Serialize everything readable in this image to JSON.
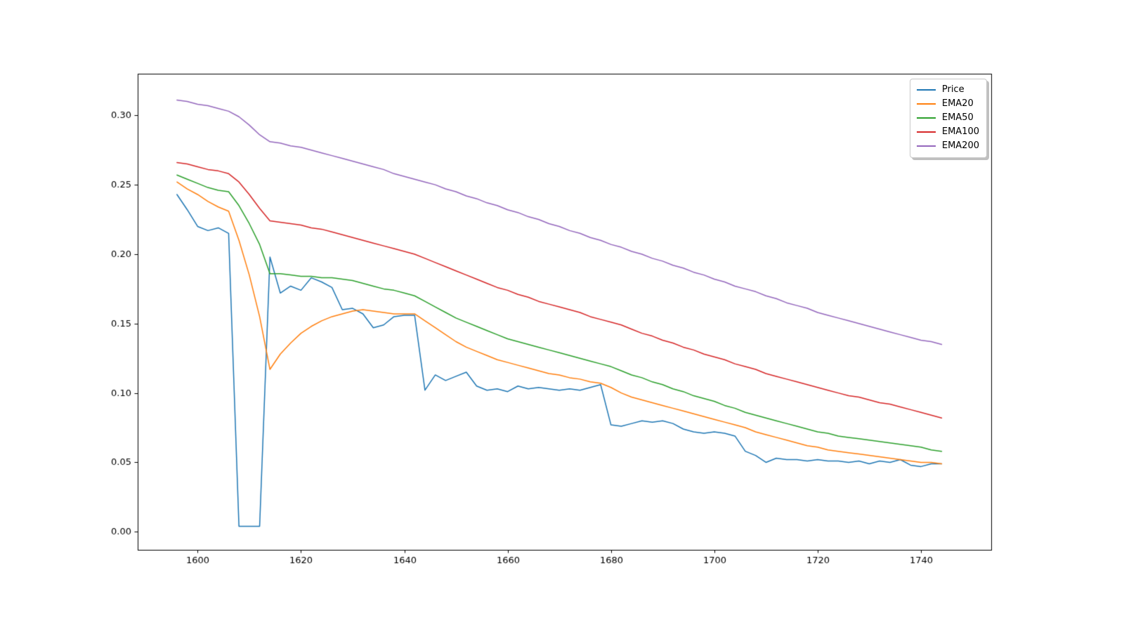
{
  "figure": {
    "background": "#ffffff"
  },
  "chart_data": {
    "type": "line",
    "title": "",
    "xlabel": "",
    "ylabel": "",
    "grid": false,
    "legend_position": "upper right",
    "xlim": [
      1588.4,
      1753.6
    ],
    "ylim": [
      -0.013,
      0.33
    ],
    "xticks": [
      1600,
      1620,
      1640,
      1660,
      1680,
      1700,
      1720,
      1740
    ],
    "xtick_labels": [
      "1600",
      "1620",
      "1640",
      "1660",
      "1680",
      "1700",
      "1720",
      "1740"
    ],
    "yticks": [
      0.0,
      0.05,
      0.1,
      0.15,
      0.2,
      0.25,
      0.3
    ],
    "ytick_labels": [
      "0.00",
      "0.05",
      "0.10",
      "0.15",
      "0.20",
      "0.25",
      "0.30"
    ],
    "x": [
      1596,
      1598,
      1600,
      1602,
      1604,
      1606,
      1608,
      1610,
      1612,
      1614,
      1616,
      1618,
      1620,
      1622,
      1624,
      1626,
      1628,
      1630,
      1632,
      1634,
      1636,
      1638,
      1640,
      1642,
      1644,
      1646,
      1648,
      1650,
      1652,
      1654,
      1656,
      1658,
      1660,
      1662,
      1664,
      1666,
      1668,
      1670,
      1672,
      1674,
      1676,
      1678,
      1680,
      1682,
      1684,
      1686,
      1688,
      1690,
      1692,
      1694,
      1696,
      1698,
      1700,
      1702,
      1704,
      1706,
      1708,
      1710,
      1712,
      1714,
      1716,
      1718,
      1720,
      1722,
      1724,
      1726,
      1728,
      1730,
      1732,
      1734,
      1736,
      1738,
      1740,
      1742,
      1744
    ],
    "series": [
      {
        "name": "Price",
        "color": "#1f77b4",
        "values": [
          0.243,
          0.232,
          0.22,
          0.217,
          0.219,
          0.215,
          0.004,
          0.004,
          0.004,
          0.198,
          0.172,
          0.177,
          0.174,
          0.183,
          0.18,
          0.176,
          0.16,
          0.161,
          0.157,
          0.147,
          0.149,
          0.155,
          0.156,
          0.156,
          0.102,
          0.113,
          0.109,
          0.112,
          0.115,
          0.105,
          0.102,
          0.103,
          0.101,
          0.105,
          0.103,
          0.104,
          0.103,
          0.102,
          0.103,
          0.102,
          0.104,
          0.106,
          0.077,
          0.076,
          0.078,
          0.08,
          0.079,
          0.08,
          0.078,
          0.074,
          0.072,
          0.071,
          0.072,
          0.071,
          0.069,
          0.058,
          0.055,
          0.05,
          0.053,
          0.052,
          0.052,
          0.051,
          0.052,
          0.051,
          0.051,
          0.05,
          0.051,
          0.049,
          0.051,
          0.05,
          0.052,
          0.048,
          0.047,
          0.049,
          0.049
        ]
      },
      {
        "name": "EMA20",
        "color": "#ff7f0e",
        "values": [
          0.252,
          0.247,
          0.243,
          0.238,
          0.234,
          0.231,
          0.21,
          0.185,
          0.155,
          0.117,
          0.128,
          0.136,
          0.143,
          0.148,
          0.152,
          0.155,
          0.157,
          0.159,
          0.16,
          0.159,
          0.158,
          0.157,
          0.157,
          0.157,
          0.152,
          0.147,
          0.142,
          0.137,
          0.133,
          0.13,
          0.127,
          0.124,
          0.122,
          0.12,
          0.118,
          0.116,
          0.114,
          0.113,
          0.111,
          0.11,
          0.108,
          0.107,
          0.104,
          0.1,
          0.097,
          0.095,
          0.093,
          0.091,
          0.089,
          0.087,
          0.085,
          0.083,
          0.081,
          0.079,
          0.077,
          0.075,
          0.072,
          0.07,
          0.068,
          0.066,
          0.064,
          0.062,
          0.061,
          0.059,
          0.058,
          0.057,
          0.056,
          0.055,
          0.054,
          0.053,
          0.052,
          0.051,
          0.05,
          0.05,
          0.049
        ]
      },
      {
        "name": "EMA50",
        "color": "#2ca02c",
        "values": [
          0.257,
          0.254,
          0.251,
          0.248,
          0.246,
          0.245,
          0.235,
          0.222,
          0.207,
          0.186,
          0.186,
          0.185,
          0.184,
          0.184,
          0.183,
          0.183,
          0.182,
          0.181,
          0.179,
          0.177,
          0.175,
          0.174,
          0.172,
          0.17,
          0.166,
          0.162,
          0.158,
          0.154,
          0.151,
          0.148,
          0.145,
          0.142,
          0.139,
          0.137,
          0.135,
          0.133,
          0.131,
          0.129,
          0.127,
          0.125,
          0.123,
          0.121,
          0.119,
          0.116,
          0.113,
          0.111,
          0.108,
          0.106,
          0.103,
          0.101,
          0.098,
          0.096,
          0.094,
          0.091,
          0.089,
          0.086,
          0.084,
          0.082,
          0.08,
          0.078,
          0.076,
          0.074,
          0.072,
          0.071,
          0.069,
          0.068,
          0.067,
          0.066,
          0.065,
          0.064,
          0.063,
          0.062,
          0.061,
          0.059,
          0.058
        ]
      },
      {
        "name": "EMA100",
        "color": "#d62728",
        "values": [
          0.266,
          0.265,
          0.263,
          0.261,
          0.26,
          0.258,
          0.252,
          0.243,
          0.233,
          0.224,
          0.223,
          0.222,
          0.221,
          0.219,
          0.218,
          0.216,
          0.214,
          0.212,
          0.21,
          0.208,
          0.206,
          0.204,
          0.202,
          0.2,
          0.197,
          0.194,
          0.191,
          0.188,
          0.185,
          0.182,
          0.179,
          0.176,
          0.174,
          0.171,
          0.169,
          0.166,
          0.164,
          0.162,
          0.16,
          0.158,
          0.155,
          0.153,
          0.151,
          0.149,
          0.146,
          0.143,
          0.141,
          0.138,
          0.136,
          0.133,
          0.131,
          0.128,
          0.126,
          0.124,
          0.121,
          0.119,
          0.117,
          0.114,
          0.112,
          0.11,
          0.108,
          0.106,
          0.104,
          0.102,
          0.1,
          0.098,
          0.097,
          0.095,
          0.093,
          0.092,
          0.09,
          0.088,
          0.086,
          0.084,
          0.082
        ]
      },
      {
        "name": "EMA200",
        "color": "#9467bd",
        "values": [
          0.311,
          0.31,
          0.308,
          0.307,
          0.305,
          0.303,
          0.299,
          0.293,
          0.286,
          0.281,
          0.28,
          0.278,
          0.277,
          0.275,
          0.273,
          0.271,
          0.269,
          0.267,
          0.265,
          0.263,
          0.261,
          0.258,
          0.256,
          0.254,
          0.252,
          0.25,
          0.247,
          0.245,
          0.242,
          0.24,
          0.237,
          0.235,
          0.232,
          0.23,
          0.227,
          0.225,
          0.222,
          0.22,
          0.217,
          0.215,
          0.212,
          0.21,
          0.207,
          0.205,
          0.202,
          0.2,
          0.197,
          0.195,
          0.192,
          0.19,
          0.187,
          0.185,
          0.182,
          0.18,
          0.177,
          0.175,
          0.173,
          0.17,
          0.168,
          0.165,
          0.163,
          0.161,
          0.158,
          0.156,
          0.154,
          0.152,
          0.15,
          0.148,
          0.146,
          0.144,
          0.142,
          0.14,
          0.138,
          0.137,
          0.135
        ]
      }
    ]
  }
}
